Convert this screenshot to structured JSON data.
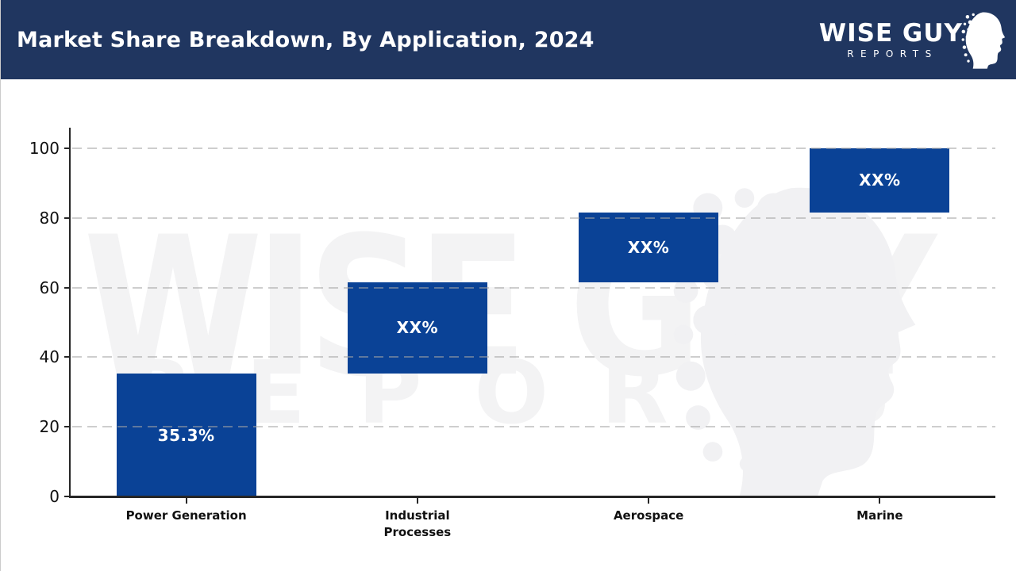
{
  "header": {
    "title": "Market Share Breakdown, By Application, 2024",
    "logo": {
      "line1": "WISE GUY",
      "line2": "REPORTS"
    }
  },
  "watermark": {
    "line1": "WISE GUY",
    "line2": "REPORTS"
  },
  "chart_data": {
    "type": "bar",
    "subtype": "waterfall",
    "title": "Market Share Breakdown, By Application, 2024",
    "categories": [
      "Power Generation",
      "Industrial\nProcesses",
      "Aerospace",
      "Marine"
    ],
    "segments": [
      {
        "category": "Power Generation",
        "start": 0,
        "end": 35.3,
        "label": "35.3%"
      },
      {
        "category": "Industrial Processes",
        "start": 35.3,
        "end": 61.6,
        "label": "XX%"
      },
      {
        "category": "Aerospace",
        "start": 61.6,
        "end": 81.6,
        "label": "XX%"
      },
      {
        "category": "Marine",
        "start": 81.6,
        "end": 100,
        "label": "XX%"
      }
    ],
    "ylim": [
      0,
      100
    ],
    "yticks": [
      0,
      20,
      40,
      60,
      80,
      100
    ],
    "grid": "horizontal-dashed",
    "legend": "none",
    "bar_color": "#0a4296",
    "value_label_color": "#ffffff"
  },
  "colors": {
    "header_bg": "#203660",
    "bar": "#0a4296",
    "grid": "#c9c9c9",
    "axis": "#262626",
    "watermark": "#f3f3f4",
    "frame": "#cccccc"
  }
}
